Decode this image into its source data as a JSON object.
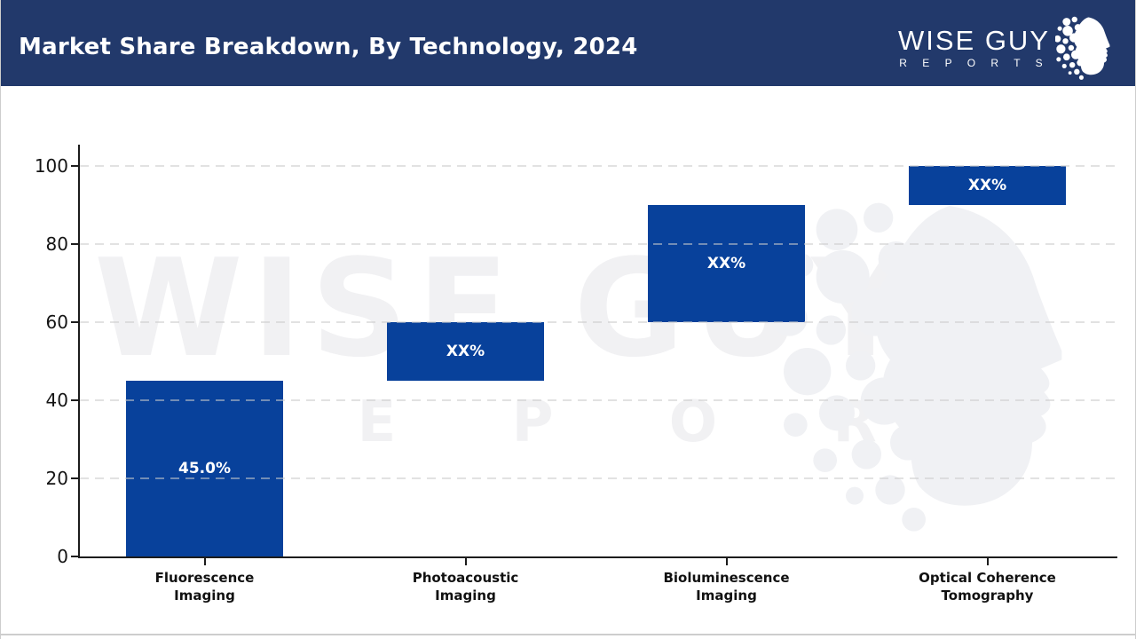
{
  "header": {
    "title": "Market Share Breakdown, By Technology, 2024",
    "bg_color": "#22396b",
    "text_color": "#ffffff",
    "logo": {
      "brand": "WISE GUY",
      "tagline": "R E P O R T S",
      "icon": "dotted-head-profile-icon"
    }
  },
  "watermark": {
    "line1": "WISE GUY",
    "line2": "R E P O R T S",
    "color": "#f1f1f3",
    "icon": "dotted-head-profile-watermark"
  },
  "chart_data": {
    "type": "bar",
    "subtype": "waterfall",
    "title": "Market Share Breakdown, By Technology, 2024",
    "xlabel": "",
    "ylabel": "",
    "ylim": [
      0,
      105
    ],
    "yticks": [
      0,
      20,
      40,
      60,
      80,
      100
    ],
    "grid": "horizontal-dashed-on-top",
    "legend": "none",
    "bar_color": "#08419b",
    "bar_label_color": "#ffffff",
    "axis_color": "#1c1c1c",
    "categories": [
      "Fluorescence Imaging",
      "Photoacoustic Imaging",
      "Bioluminescence Imaging",
      "Optical Coherence Tomography"
    ],
    "segments": [
      {
        "category": "Fluorescence Imaging",
        "start": 0,
        "end": 45,
        "value": 45,
        "value_label": "45.0%"
      },
      {
        "category": "Photoacoustic Imaging",
        "start": 45,
        "end": 60,
        "value": 15,
        "value_label": "XX%"
      },
      {
        "category": "Bioluminescence Imaging",
        "start": 60,
        "end": 90,
        "value": 30,
        "value_label": "XX%"
      },
      {
        "category": "Optical Coherence Tomography",
        "start": 90,
        "end": 100,
        "value": 10,
        "value_label": "XX%"
      }
    ]
  }
}
